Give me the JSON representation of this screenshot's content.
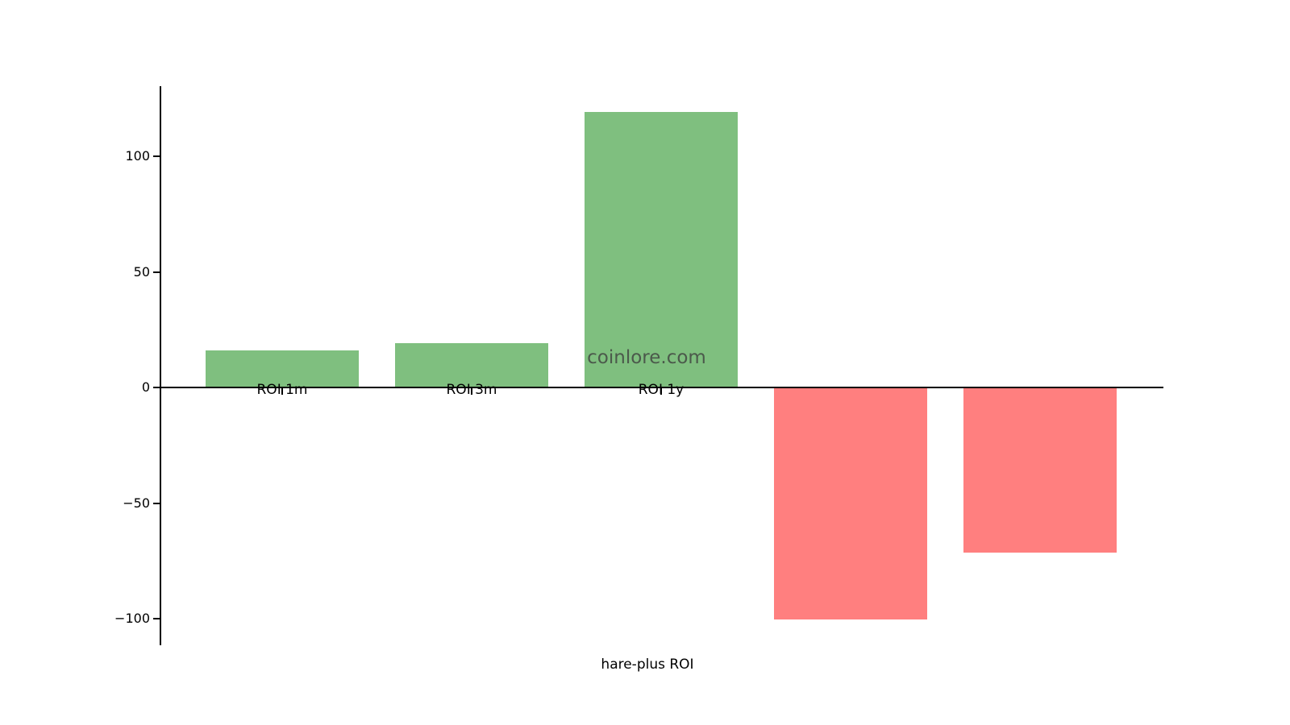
{
  "chart_data": {
    "type": "bar",
    "title": "",
    "xlabel": "hare-plus ROI",
    "ylabel": "",
    "watermark": "coinlore.com",
    "categories": [
      "ROI 1m",
      "ROI 3m",
      "ROI 1y",
      "",
      ""
    ],
    "values": [
      16,
      19,
      119,
      -100,
      -71
    ],
    "bar_colors": [
      "green",
      "green",
      "green",
      "red",
      "red"
    ],
    "palette": {
      "green": "#7fbf7f",
      "red": "#ff7f7f"
    },
    "yticks": [
      {
        "value": 100,
        "label": "100"
      },
      {
        "value": 50,
        "label": "50"
      },
      {
        "value": 0,
        "label": "0"
      },
      {
        "value": -50,
        "label": "−50"
      },
      {
        "value": -100,
        "label": "−100"
      }
    ],
    "ylim": [
      -111,
      131
    ],
    "grid": false,
    "legend": "none",
    "note": "x tick labels of the two negative bars are hidden behind the red bars"
  }
}
